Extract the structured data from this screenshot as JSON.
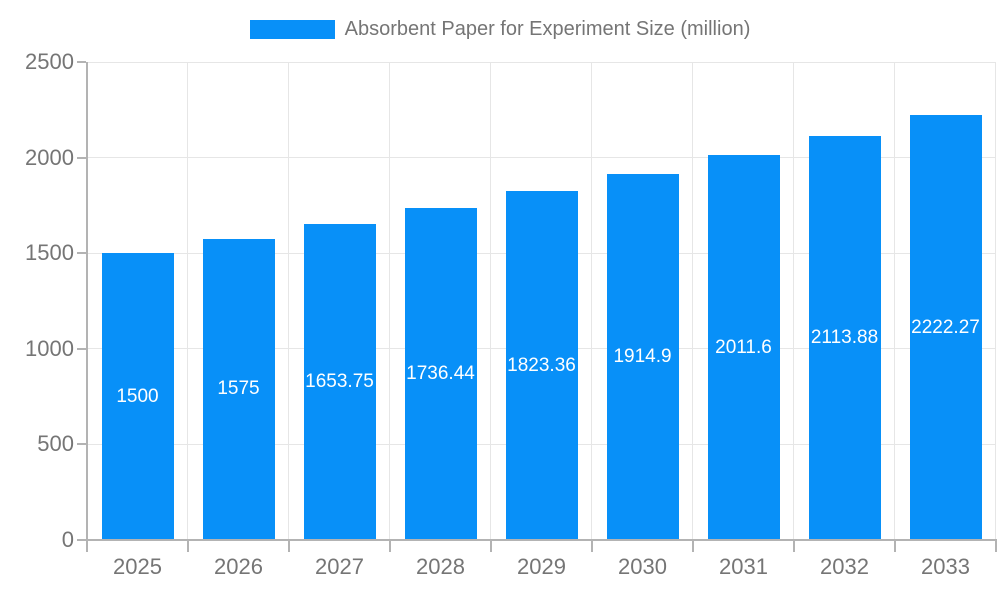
{
  "legend": {
    "label": "Absorbent Paper for Experiment Size (million)"
  },
  "colors": {
    "bar": "#0890f8",
    "grid": "#e6e6e6",
    "axis": "#b3b3b3",
    "tick_text": "#757575",
    "bar_label_text": "#ffffff"
  },
  "chart_data": {
    "type": "bar",
    "title": "",
    "series_name": "Absorbent Paper for Experiment Size (million)",
    "categories": [
      "2025",
      "2026",
      "2027",
      "2028",
      "2029",
      "2030",
      "2031",
      "2032",
      "2033"
    ],
    "values": [
      1500,
      1575,
      1653.75,
      1736.44,
      1823.36,
      1914.9,
      2011.6,
      2113.88,
      2222.27
    ],
    "bar_labels": [
      "1500",
      "1575",
      "1653.75",
      "1736.44",
      "1823.36",
      "1914.9",
      "2011.6",
      "2113.88",
      "2222.27"
    ],
    "xlabel": "",
    "ylabel": "",
    "ylim": [
      0,
      2500
    ],
    "yticks": [
      0,
      500,
      1000,
      1500,
      2000,
      2500
    ],
    "grid": true,
    "legend_position": "top",
    "bar_color": "#0890f8",
    "value_label_position": "inside-center"
  }
}
